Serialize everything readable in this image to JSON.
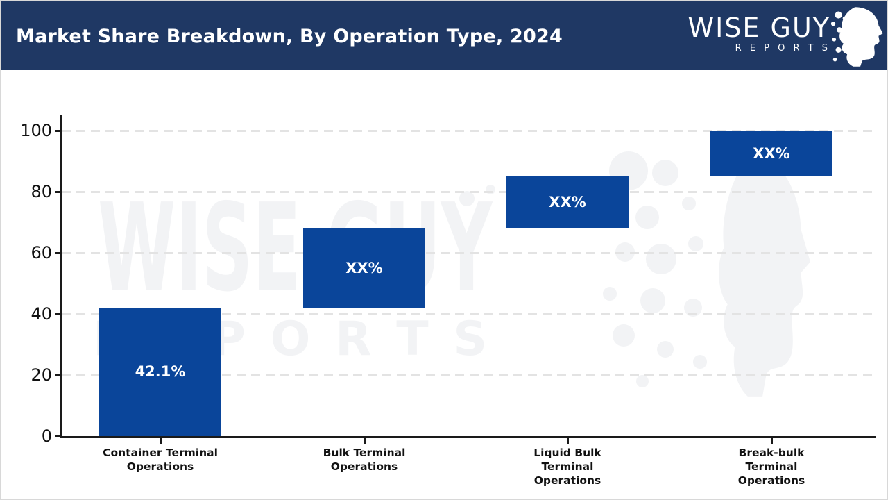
{
  "header": {
    "title": "Market Share Breakdown, By Operation Type, 2024",
    "logo": {
      "primary": "WISE GUY",
      "secondary": "R E P O R T S"
    }
  },
  "watermark": {
    "primary": "WISE GUY",
    "secondary": "R E P O R T S"
  },
  "colors": {
    "header_bg": "#1F3864",
    "bar": "#0A459A",
    "axis": "#1a1a1a",
    "grid": "#e3e3e3",
    "watermark": "#f2f3f5",
    "bar_label": "#ffffff"
  },
  "chart_data": {
    "type": "bar",
    "subtype": "waterfall",
    "title": "Market Share Breakdown, By Operation Type, 2024",
    "xlabel": "",
    "ylabel": "",
    "ylim": [
      0,
      105
    ],
    "yticks": [
      0,
      20,
      40,
      60,
      80,
      100
    ],
    "grid": "dashed-horizontal",
    "legend": "none",
    "categories": [
      "Container Terminal Operations",
      "Bulk Terminal Operations",
      "Liquid Bulk Terminal Operations",
      "Break-bulk Terminal Operations"
    ],
    "bars": [
      {
        "category_lines": [
          "Container Terminal",
          "Operations"
        ],
        "start": 0,
        "end": 42.1,
        "label": "42.1%"
      },
      {
        "category_lines": [
          "Bulk Terminal",
          "Operations"
        ],
        "start": 42.1,
        "end": 68,
        "label": "XX%"
      },
      {
        "category_lines": [
          "Liquid Bulk",
          "Terminal",
          "Operations"
        ],
        "start": 68,
        "end": 85,
        "label": "XX%"
      },
      {
        "category_lines": [
          "Break-bulk",
          "Terminal",
          "Operations"
        ],
        "start": 85,
        "end": 100,
        "label": "XX%"
      }
    ]
  }
}
